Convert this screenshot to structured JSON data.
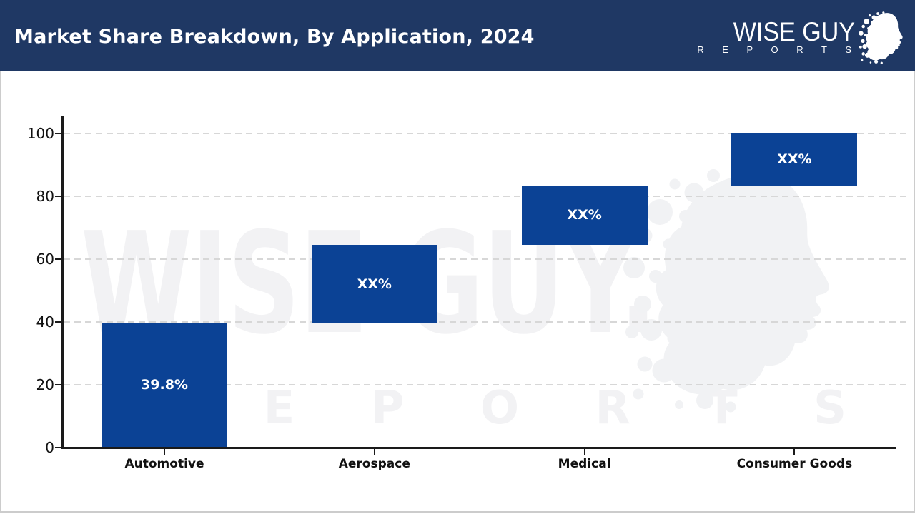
{
  "header": {
    "title": "Market Share Breakdown, By Application, 2024",
    "logo": {
      "line1": "WISE GUY",
      "line2": "R E P O R T S",
      "head_icon": "dotted-face-profile"
    }
  },
  "watermark": {
    "line1": "WISE GUY.",
    "line2": "R E P O R T S",
    "head_icon": "dotted-face-profile"
  },
  "colors": {
    "header_bg": "#1F3864",
    "bar": "#0B4295",
    "bar_label": "#ffffff",
    "title_text": "#ffffff",
    "axis": "#1a1a1a",
    "grid": "#d7d7d7",
    "watermark": "#f2f2f4",
    "card_border": "#cccccc"
  },
  "chart_data": {
    "type": "bar",
    "subtype": "floating-waterfall",
    "title": "Market Share Breakdown, By Application, 2024",
    "xlabel": "",
    "ylabel": "",
    "categories": [
      "Automotive",
      "Aerospace",
      "Medical",
      "Consumer Goods"
    ],
    "segments": [
      {
        "category": "Automotive",
        "start": 0,
        "end": 39.8,
        "value": 39.8,
        "label": "39.8%"
      },
      {
        "category": "Aerospace",
        "start": 39.8,
        "end": 64.4,
        "value": 24.6,
        "label": "XX%"
      },
      {
        "category": "Medical",
        "start": 64.4,
        "end": 83.5,
        "value": 19.1,
        "label": "XX%"
      },
      {
        "category": "Consumer Goods",
        "start": 83.5,
        "end": 100,
        "value": 16.5,
        "label": "XX%"
      }
    ],
    "yticks": [
      0,
      20,
      40,
      60,
      80,
      100
    ],
    "ylim": [
      0,
      105
    ],
    "grid": "horizontal-dashed",
    "legend": "none"
  }
}
